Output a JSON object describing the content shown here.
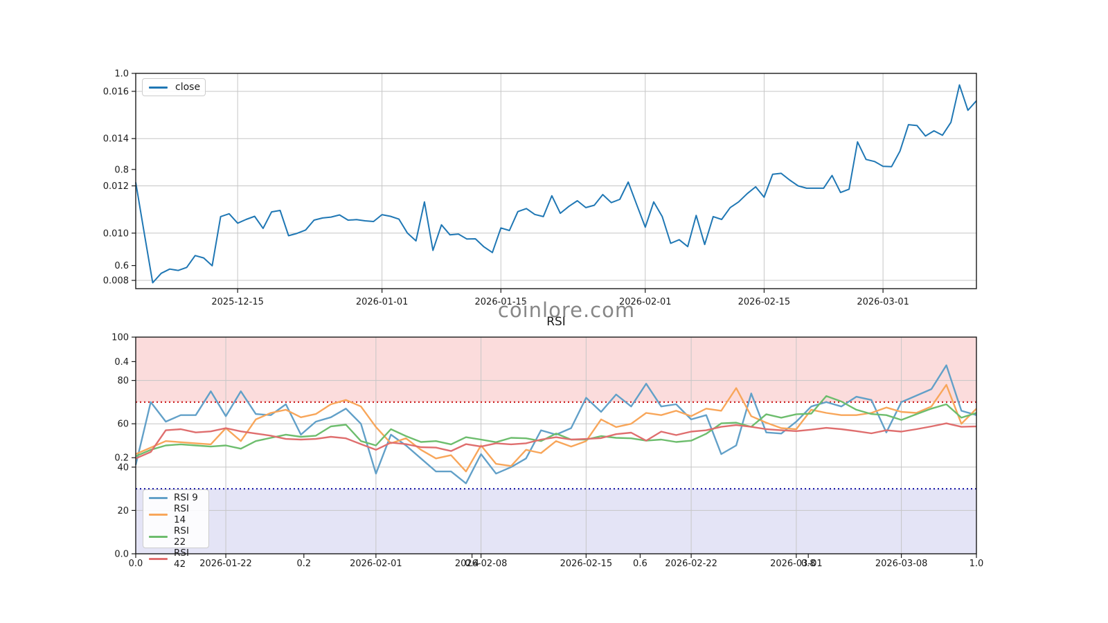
{
  "watermark": {
    "text": "coinlore.com",
    "color": "#878787"
  },
  "figure_axes": {
    "y_tick_labels": [
      "1.0",
      "0.8",
      "0.6",
      "0.4",
      "0.2",
      "0.0"
    ],
    "x_tick_labels": [
      "0.0",
      "0.2",
      "0.4",
      "0.6",
      "0.8",
      "1.0"
    ]
  },
  "chart_data": [
    {
      "type": "line",
      "name": "price-chart",
      "title": "",
      "legend_position": "upper left",
      "grid": true,
      "x_start_date": "2025-12-03",
      "x_end_date": "2026-03-12",
      "x_tick_labels": [
        "2025-12-15",
        "2026-01-01",
        "2026-01-15",
        "2026-02-01",
        "2026-02-15",
        "2026-03-01"
      ],
      "x_tick_indices": [
        12,
        29,
        43,
        60,
        74,
        88
      ],
      "y_tick_labels": [
        "0.008",
        "0.010",
        "0.012",
        "0.014",
        "0.016"
      ],
      "y_tick_values": [
        0.008,
        0.01,
        0.012,
        0.014,
        0.016
      ],
      "ylim": [
        0.00765,
        0.01676
      ],
      "series": [
        {
          "name": "close",
          "color": "#1f77b4",
          "values": [
            0.01215,
            0.01,
            0.0079,
            0.0083,
            0.00848,
            0.00842,
            0.00855,
            0.00905,
            0.00895,
            0.00862,
            0.0107,
            0.01082,
            0.01042,
            0.01058,
            0.01071,
            0.0102,
            0.0109,
            0.01096,
            0.00989,
            0.00999,
            0.01013,
            0.01055,
            0.01064,
            0.01068,
            0.01077,
            0.01055,
            0.01057,
            0.01052,
            0.01049,
            0.01078,
            0.01071,
            0.01059,
            0.01,
            0.00967,
            0.01132,
            0.00927,
            0.01035,
            0.00993,
            0.00996,
            0.00975,
            0.00976,
            0.00942,
            0.00918,
            0.01022,
            0.01011,
            0.01091,
            0.01104,
            0.01079,
            0.0107,
            0.01158,
            0.01084,
            0.01113,
            0.01137,
            0.01108,
            0.01118,
            0.01163,
            0.01129,
            0.01143,
            0.01216,
            0.0112,
            0.01025,
            0.01132,
            0.0107,
            0.00957,
            0.00972,
            0.00943,
            0.01075,
            0.00952,
            0.0107,
            0.01058,
            0.01108,
            0.01132,
            0.01167,
            0.01196,
            0.01152,
            0.01249,
            0.01253,
            0.01225,
            0.012,
            0.0119,
            0.0119,
            0.0119,
            0.01244,
            0.01172,
            0.01186,
            0.01386,
            0.01312,
            0.01303,
            0.01283,
            0.01281,
            0.01347,
            0.01459,
            0.01455,
            0.01411,
            0.01433,
            0.01414,
            0.01469,
            0.01627,
            0.0152,
            0.0156
          ]
        }
      ]
    },
    {
      "type": "line",
      "name": "rsi-chart",
      "title": "RSI",
      "legend_position": "lower left",
      "grid": true,
      "x_start_date": "2026-01-16",
      "x_end_date": "2026-03-13",
      "x_tick_labels": [
        "2026-01-22",
        "2026-02-01",
        "2026-02-08",
        "2026-02-15",
        "2026-02-22",
        "2026-03-01",
        "2026-03-08"
      ],
      "x_tick_indices": [
        6,
        16,
        23,
        30,
        37,
        44,
        51
      ],
      "y_tick_labels": [
        "20",
        "40",
        "60",
        "80",
        "100"
      ],
      "y_tick_values": [
        20,
        40,
        60,
        80,
        100
      ],
      "ylim": [
        0,
        100
      ],
      "overbought": {
        "threshold": 70,
        "band": [
          70,
          100
        ],
        "band_color": "#fbdcdc",
        "line_color": "#cc2020"
      },
      "oversold": {
        "threshold": 30,
        "band": [
          0,
          30
        ],
        "band_color": "#e4e4f6",
        "line_color": "#2020a8"
      },
      "series": [
        {
          "name": "RSI 9",
          "color": "#62a0c8",
          "values": [
            41,
            70,
            61,
            64,
            64,
            75,
            63.5,
            75,
            64.5,
            64,
            69,
            55,
            61,
            63,
            67,
            60,
            37,
            55,
            50,
            44,
            38,
            38,
            32.5,
            46,
            37,
            40,
            44,
            57,
            55,
            58,
            72,
            65.5,
            73.5,
            68,
            78.5,
            68,
            69,
            62,
            64,
            46,
            50,
            74,
            56,
            55.5,
            61,
            68,
            70,
            68,
            72.5,
            71,
            56,
            70,
            73,
            76,
            87,
            66,
            64
          ]
        },
        {
          "name": "RSI 14",
          "color": "#f8a65a",
          "values": [
            46,
            49,
            52,
            51.5,
            51,
            50.5,
            58,
            52,
            62,
            65,
            66.5,
            63,
            64.5,
            69,
            71,
            68,
            58.5,
            51,
            53.3,
            48,
            44,
            45.5,
            38,
            50,
            41.5,
            40.5,
            48,
            46.5,
            52,
            49.5,
            52,
            62,
            58.5,
            60,
            65,
            64,
            66,
            63.5,
            67,
            66,
            76.5,
            63.5,
            60.5,
            58,
            57.5,
            66.5,
            65,
            64,
            64,
            65,
            67.5,
            65.5,
            65,
            68,
            78,
            60,
            67
          ]
        },
        {
          "name": "RSI 22",
          "color": "#6dbd6d",
          "values": [
            45,
            48,
            50,
            50.5,
            50,
            49.5,
            50,
            48.5,
            52,
            53.5,
            55,
            54,
            54.5,
            58.8,
            59.6,
            52,
            50,
            57.5,
            54.3,
            51.6,
            52,
            50.5,
            53.8,
            52.7,
            51.5,
            53.5,
            53.3,
            52,
            55.5,
            52.7,
            52.7,
            54.3,
            53.5,
            53.3,
            52.2,
            52.7,
            51.6,
            52.2,
            55.4,
            60.2,
            60.5,
            58.6,
            64.4,
            62.8,
            64.4,
            64.7,
            72.8,
            70.3,
            66.5,
            64.5,
            64,
            61.8,
            64.4,
            67,
            69,
            62.8,
            65
          ]
        },
        {
          "name": "RSI 42",
          "color": "#df6e6e",
          "values": [
            44,
            47,
            57,
            57.5,
            56,
            56.5,
            58,
            56.5,
            55.5,
            54.5,
            53,
            52.7,
            53,
            54,
            53.3,
            50.6,
            48,
            51.3,
            50.6,
            49.2,
            49,
            47.4,
            50.6,
            49.5,
            51,
            50.5,
            51,
            52.7,
            53.8,
            52.7,
            53,
            53.4,
            55.2,
            55.9,
            52.2,
            56.4,
            54.8,
            56.4,
            57,
            58.6,
            59.4,
            58.6,
            57.5,
            57,
            56.6,
            57.3,
            58.1,
            57.5,
            56.6,
            55.6,
            57,
            56.4,
            57.5,
            58.8,
            60.2,
            58.6,
            58.8
          ]
        }
      ]
    }
  ]
}
